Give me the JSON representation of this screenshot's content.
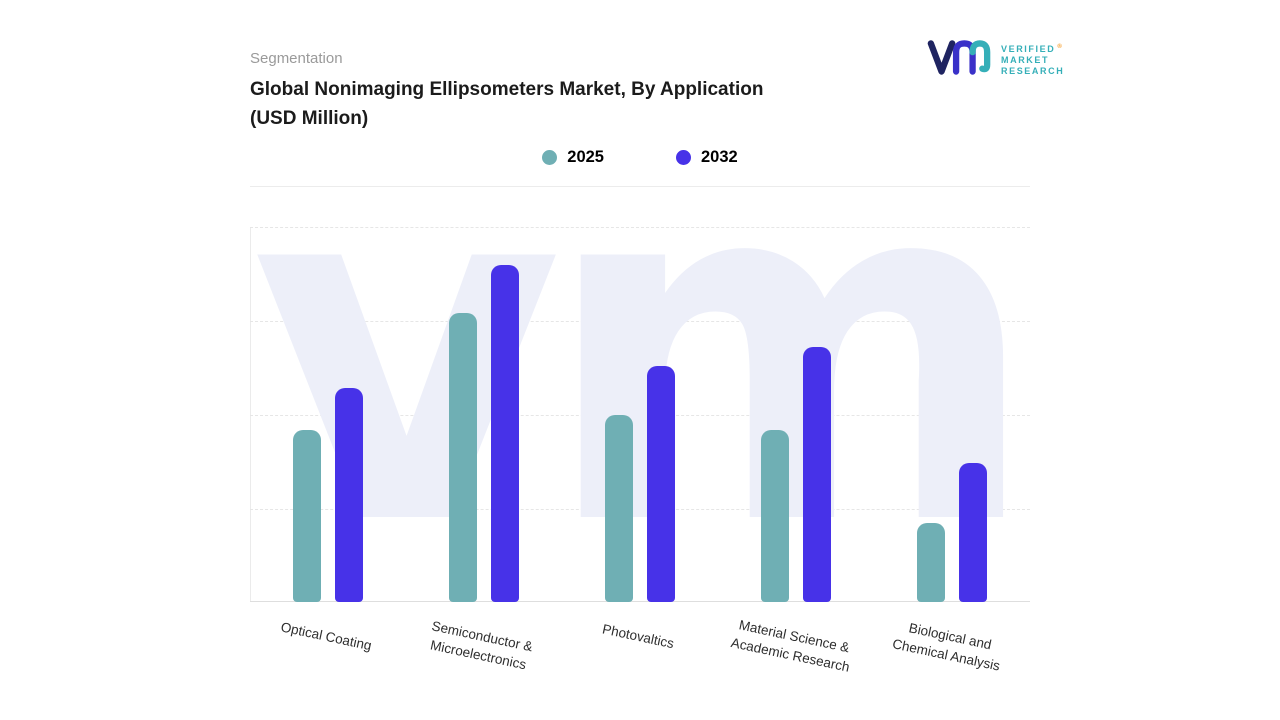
{
  "header": {
    "eyebrow": "Segmentation",
    "title_line1": "Global Nonimaging Ellipsometers Market, By Application",
    "title_line2": "(USD Million)"
  },
  "logo": {
    "brand_lines": [
      "VERIFIED",
      "MARKET",
      "RESEARCH"
    ],
    "registered_mark": "®"
  },
  "legend": [
    {
      "label": "2025",
      "color": "#6FAFB4"
    },
    {
      "label": "2032",
      "color": "#4732E8"
    }
  ],
  "chart_data": {
    "type": "bar",
    "title": "Global Nonimaging Ellipsometers Market, By Application (USD Million)",
    "categories": [
      "Optical Coating",
      "Semiconductor  & Microelectronics",
      "Photovaltics",
      "Material Science & Academic Research",
      "Biological and Chemical Analysis"
    ],
    "series": [
      {
        "name": "2025",
        "color": "#6FAFB4",
        "values": [
          46,
          77,
          50,
          46,
          21
        ]
      },
      {
        "name": "2032",
        "color": "#4732E8",
        "values": [
          57,
          90,
          63,
          68,
          37
        ]
      }
    ],
    "xlabel": "",
    "ylabel": "",
    "ylim": [
      0,
      100
    ],
    "grid": "horizontal-dashed",
    "legend_position": "top-center",
    "watermark": "vm"
  },
  "colors": {
    "accent_teal": "#35AFB8",
    "accent_navy": "#1F2461",
    "accent_indigo": "#3A31C8",
    "watermark": "#EDEFF9",
    "registered": "#F59A23"
  }
}
